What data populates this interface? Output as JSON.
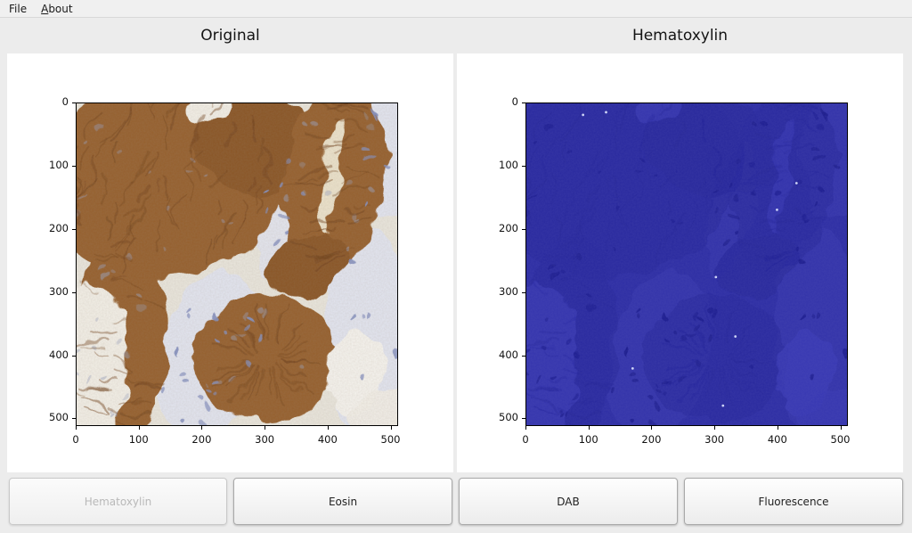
{
  "menu_bar": {
    "items": [
      {
        "label": "File",
        "underline_first": false
      },
      {
        "label": "About",
        "underline_first": true
      }
    ]
  },
  "panels": [
    {
      "title": "Original",
      "image_name": "original-ihc-image"
    },
    {
      "title": "Hematoxylin",
      "image_name": "hematoxylin-channel-image"
    }
  ],
  "axes": {
    "x_ticks": [
      "0",
      "100",
      "200",
      "300",
      "400",
      "500"
    ],
    "y_ticks": [
      "0",
      "100",
      "200",
      "300",
      "400",
      "500"
    ]
  },
  "stain_buttons": [
    {
      "label": "Hematoxylin",
      "disabled": true
    },
    {
      "label": "Eosin",
      "disabled": false
    },
    {
      "label": "DAB",
      "disabled": false
    },
    {
      "label": "Fluorescence",
      "disabled": false
    }
  ],
  "colors": {
    "window_bg": "#ececec",
    "panel_bg": "#ffffff",
    "dab_brown": "#96602e",
    "stroma_nucleus_blue": "#8490c0",
    "hematoxylin_blue": "#2e2ea4",
    "disabled_text": "#b9b9b9"
  }
}
